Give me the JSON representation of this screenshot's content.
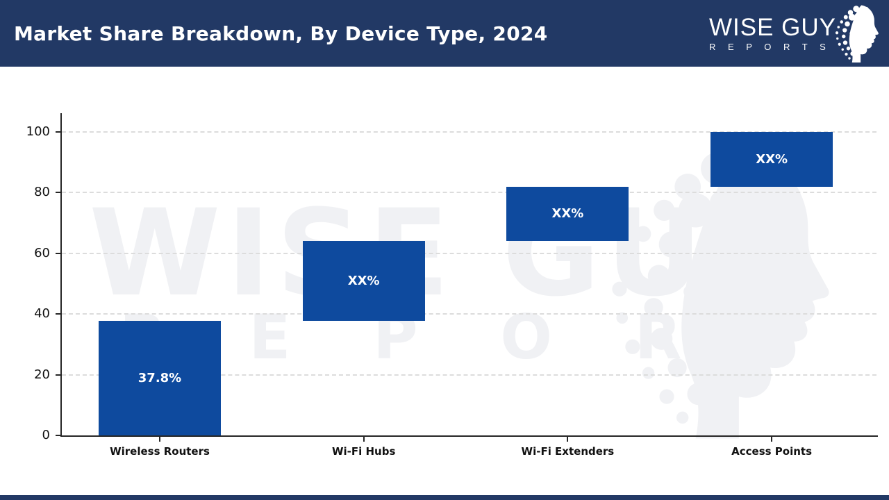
{
  "header": {
    "title": "Market Share Breakdown, By Device Type, 2024",
    "logo": {
      "line1": "WISE GUY",
      "line2": "R E P O R T S"
    }
  },
  "watermark": {
    "line1": "WISE GUY",
    "line2": "R E P O R T S"
  },
  "colors": {
    "header_bg": "#223965",
    "footer_bg": "#223965",
    "bar": "#0e4a9e",
    "watermark": "#f0f1f4",
    "axis": "#262626",
    "gridline": "#dcdcdc",
    "bar_label": "#ffffff",
    "title_text": "#ffffff"
  },
  "chart_data": {
    "type": "bar",
    "subtype": "waterfall",
    "title": "Market Share Breakdown, By Device Type, 2024",
    "categories": [
      "Wireless Routers",
      "Wi-Fi Hubs",
      "Wi-Fi Extenders",
      "Access Points"
    ],
    "segments": [
      {
        "category": "Wireless Routers",
        "start": 0,
        "end": 37.8,
        "label": "37.8%"
      },
      {
        "category": "Wi-Fi Hubs",
        "start": 37.8,
        "end": 64,
        "label": "XX%"
      },
      {
        "category": "Wi-Fi Extenders",
        "start": 64,
        "end": 82,
        "label": "XX%"
      },
      {
        "category": "Access Points",
        "start": 82,
        "end": 100,
        "label": "XX%"
      }
    ],
    "xlabel": "",
    "ylabel": "",
    "yticks": [
      0,
      20,
      40,
      60,
      80,
      100
    ],
    "ylim": [
      0,
      105
    ],
    "grid": "horizontal-dashed",
    "legend": "none"
  }
}
